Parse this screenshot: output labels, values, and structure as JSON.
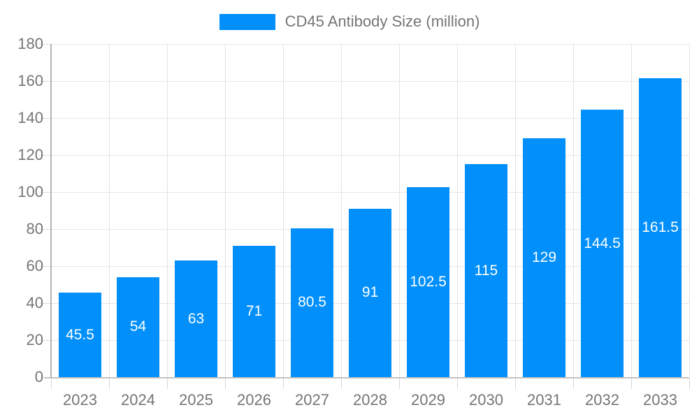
{
  "chart_data": {
    "type": "bar",
    "title": "",
    "legend_label": "CD45 Antibody Size (million)",
    "legend_position": "top",
    "categories": [
      "2023",
      "2024",
      "2025",
      "2026",
      "2027",
      "2028",
      "2029",
      "2030",
      "2031",
      "2032",
      "2033"
    ],
    "series": [
      {
        "name": "CD45 Antibody Size (million)",
        "values": [
          45.5,
          54,
          63,
          71,
          80.5,
          91,
          102.5,
          115,
          129,
          144.5,
          161.5
        ]
      }
    ],
    "value_labels_shown": true,
    "xlabel": "",
    "ylabel": "",
    "ylim": [
      0,
      180
    ],
    "yticks": [
      0,
      20,
      40,
      60,
      80,
      100,
      120,
      140,
      160,
      180
    ],
    "grid": true,
    "colors": {
      "bar": "#008FFB",
      "bar_value_text": "#ffffff",
      "axis_text": "#757575",
      "legend_text": "#757575",
      "gridline_h": "#e7e7e7",
      "gridline_v": "#e2e2e2",
      "axis_line": "#b3b3b3"
    }
  }
}
